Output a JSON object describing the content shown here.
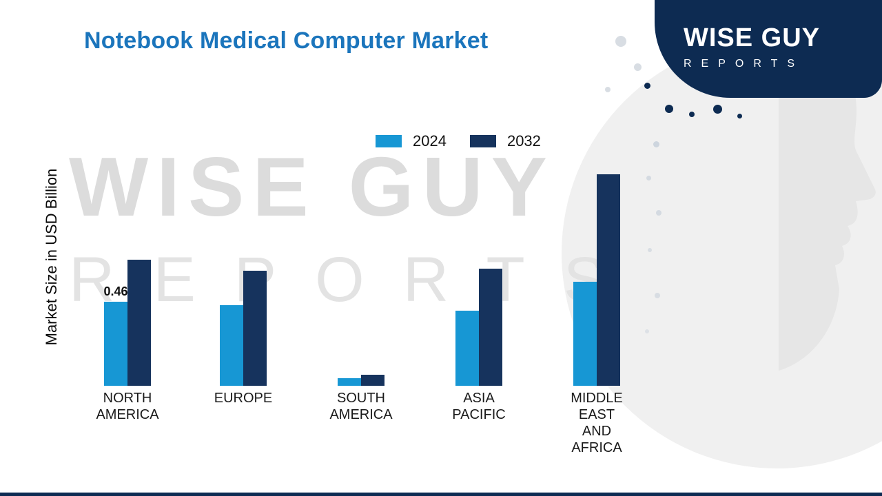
{
  "page": {
    "title": "Notebook Medical Computer Market"
  },
  "logo": {
    "line1": "WISE GUY",
    "line2": "REPORTS"
  },
  "watermark": {
    "line1": "WISE GUY",
    "line2": "REPORTS"
  },
  "chart_data": {
    "type": "bar",
    "title": "Notebook Medical Computer Market",
    "xlabel": "",
    "ylabel": "Market Size in USD Billion",
    "categories": [
      "NORTH\nAMERICA",
      "EUROPE",
      "SOUTH\nAMERICA",
      "ASIA\nPACIFIC",
      "MIDDLE\nEAST\nAND\nAFRICA"
    ],
    "series": [
      {
        "name": "2024",
        "color": "#1797d4",
        "values": [
          0.46,
          0.44,
          0.04,
          0.41,
          0.57
        ]
      },
      {
        "name": "2032",
        "color": "#16335d",
        "values": [
          0.69,
          0.63,
          0.06,
          0.64,
          1.16
        ]
      }
    ],
    "annotations": [
      {
        "series_index": 0,
        "category_index": 0,
        "text": "0.46"
      }
    ],
    "ylim": [
      0,
      1.3
    ],
    "grid": false,
    "legend_position": "top"
  },
  "colors": {
    "title": "#1b75bc",
    "navy": "#0d2b52",
    "light_blue": "#1797d4",
    "watermark": "#dcdcdc",
    "background_circle": "#f0f0f0"
  }
}
